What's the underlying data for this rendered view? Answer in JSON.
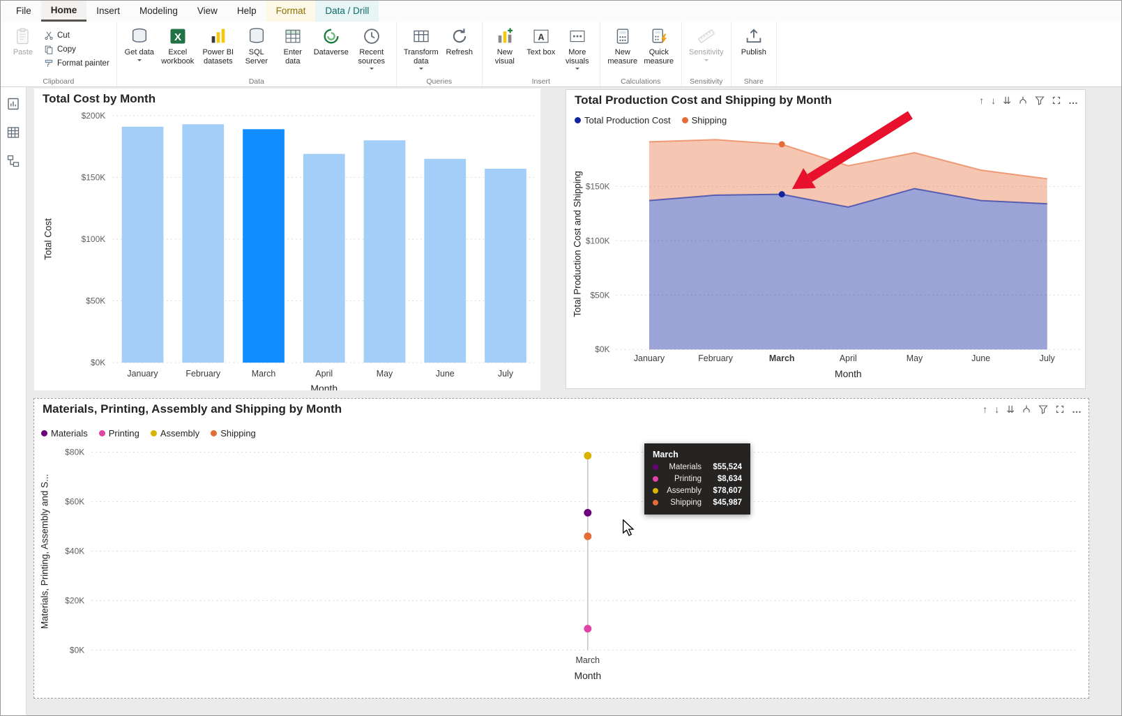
{
  "ribbon": {
    "tabs": {
      "file": "File",
      "home": "Home",
      "insert": "Insert",
      "modeling": "Modeling",
      "view": "View",
      "help": "Help",
      "format": "Format",
      "data_drill": "Data / Drill"
    },
    "groups": {
      "clipboard": {
        "label": "Clipboard",
        "paste": "Paste",
        "cut": "Cut",
        "copy": "Copy",
        "format_painter": "Format painter"
      },
      "data": {
        "label": "Data",
        "get_data": "Get data",
        "excel_workbook": "Excel workbook",
        "power_bi_datasets": "Power BI datasets",
        "sql_server": "SQL Server",
        "enter_data": "Enter data",
        "dataverse": "Dataverse",
        "recent_sources": "Recent sources"
      },
      "queries": {
        "label": "Queries",
        "transform_data": "Transform data",
        "refresh": "Refresh"
      },
      "insert": {
        "label": "Insert",
        "new_visual": "New visual",
        "text_box": "Text box",
        "more_visuals": "More visuals"
      },
      "calculations": {
        "label": "Calculations",
        "new_measure": "New measure",
        "quick_measure": "Quick measure"
      },
      "sensitivity": {
        "label": "Sensitivity",
        "sensitivity": "Sensitivity"
      },
      "share": {
        "label": "Share",
        "publish": "Publish"
      }
    }
  },
  "left_nav": {
    "icons": [
      "report-view",
      "data-view",
      "model-view"
    ]
  },
  "visual_header": {
    "icons": [
      "drill-up",
      "drill-down",
      "go-to-next-level",
      "expand-all-down",
      "filters",
      "focus-mode",
      "more-options"
    ]
  },
  "colors": {
    "canvas_bg": "#ebebeb",
    "accent_blue": "#118DFF",
    "tooltip_bg": "#252423",
    "annotation_red": "#E8112D"
  },
  "annotation": {
    "color": "#E8112D"
  },
  "tooltip": {
    "title": "March",
    "rows": [
      {
        "label": "Materials",
        "value": "$55,524",
        "color": "#6B007B"
      },
      {
        "label": "Printing",
        "value": "$8,634",
        "color": "#E044A7"
      },
      {
        "label": "Assembly",
        "value": "$78,607",
        "color": "#D9B300"
      },
      {
        "label": "Shipping",
        "value": "$45,987",
        "color": "#E66C37"
      }
    ]
  },
  "chart_data": [
    {
      "type": "bar",
      "title": "Total Cost by Month",
      "xlabel": "Month",
      "ylabel": "Total Cost",
      "categories": [
        "January",
        "February",
        "March",
        "April",
        "May",
        "June",
        "July"
      ],
      "values": [
        191,
        193,
        189,
        169,
        180,
        165,
        157
      ],
      "units": "thousand USD",
      "ylim": [
        0,
        200
      ],
      "yticks": [
        {
          "v": 0,
          "label": "$0K"
        },
        {
          "v": 50,
          "label": "$50K"
        },
        {
          "v": 100,
          "label": "$100K"
        },
        {
          "v": 150,
          "label": "$150K"
        },
        {
          "v": 200,
          "label": "$200K"
        }
      ],
      "bar_color": "#A3CEF7",
      "highlight_index": 2,
      "highlight_color": "#118DFF",
      "grid": true,
      "legend_position": "none"
    },
    {
      "type": "area",
      "stacked": true,
      "title": "Total Production Cost and Shipping by Month",
      "xlabel": "Month",
      "ylabel": "Total Production Cost and Shipping",
      "categories": [
        "January",
        "February",
        "March",
        "April",
        "May",
        "June",
        "July"
      ],
      "series": [
        {
          "name": "Total Production Cost",
          "color": "#12239E",
          "values": [
            137,
            142,
            142.765,
            131,
            148,
            137,
            134
          ]
        },
        {
          "name": "Shipping",
          "color": "#E66C37",
          "values": [
            54,
            51,
            45.987,
            38,
            33,
            28,
            23
          ]
        }
      ],
      "units": "thousand USD",
      "ylim": [
        0,
        200
      ],
      "yticks": [
        {
          "v": 0,
          "label": "$0K"
        },
        {
          "v": 50,
          "label": "$50K"
        },
        {
          "v": 100,
          "label": "$100K"
        },
        {
          "v": 150,
          "label": "$150K"
        }
      ],
      "marker_category": "March",
      "bold_category": "March",
      "grid": true,
      "legend_position": "top"
    },
    {
      "type": "scatter",
      "title": "Materials, Printing, Assembly and Shipping by Month",
      "xlabel": "Month",
      "ylabel": "Materials, Printing, Assembly and S...",
      "categories": [
        "March"
      ],
      "series": [
        {
          "name": "Materials",
          "color": "#6B007B",
          "values": [
            55.524
          ]
        },
        {
          "name": "Printing",
          "color": "#E044A7",
          "values": [
            8.634
          ]
        },
        {
          "name": "Assembly",
          "color": "#D9B300",
          "values": [
            78.607
          ]
        },
        {
          "name": "Shipping",
          "color": "#E66C37",
          "values": [
            45.987
          ]
        }
      ],
      "units": "thousand USD",
      "ylim": [
        0,
        80
      ],
      "yticks": [
        {
          "v": 0,
          "label": "$0K"
        },
        {
          "v": 20,
          "label": "$20K"
        },
        {
          "v": 40,
          "label": "$40K"
        },
        {
          "v": 60,
          "label": "$60K"
        },
        {
          "v": 80,
          "label": "$80K"
        }
      ],
      "grid": true,
      "legend_position": "top"
    }
  ]
}
